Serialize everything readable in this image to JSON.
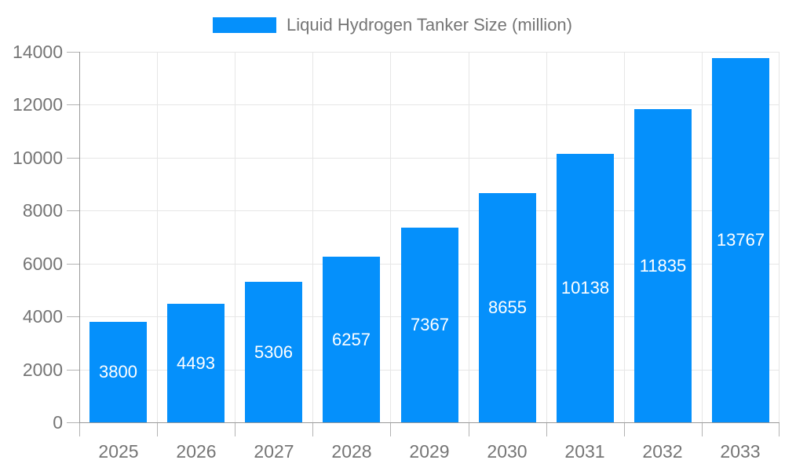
{
  "legend": {
    "label": "Liquid Hydrogen Tanker Size (million)"
  },
  "chart_data": {
    "type": "bar",
    "title": "",
    "xlabel": "",
    "ylabel": "",
    "categories": [
      "2025",
      "2026",
      "2027",
      "2028",
      "2029",
      "2030",
      "2031",
      "2032",
      "2033"
    ],
    "values": [
      3800,
      4493,
      5306,
      6257,
      7367,
      8655,
      10138,
      11835,
      13767
    ],
    "value_labels": [
      "3800",
      "4493",
      "5306",
      "6257",
      "7367",
      "8655",
      "10138",
      "11835",
      "13767"
    ],
    "series_name": "Liquid Hydrogen Tanker Size (million)",
    "ylim": [
      0,
      14000
    ],
    "ytick_step": 2000,
    "ytick_labels": [
      "0",
      "2000",
      "4000",
      "6000",
      "8000",
      "10000",
      "12000",
      "14000"
    ],
    "grid": true,
    "legend_position": "top-center",
    "colors": {
      "bar": "#0590fb",
      "axis_text": "#757575",
      "legend_text": "#757575",
      "value_text": "#ffffff",
      "gridline": "#e6e6e6",
      "axis_line": "#9a9a9a",
      "tick": "#b3b3b3",
      "background": "#ffffff"
    }
  }
}
